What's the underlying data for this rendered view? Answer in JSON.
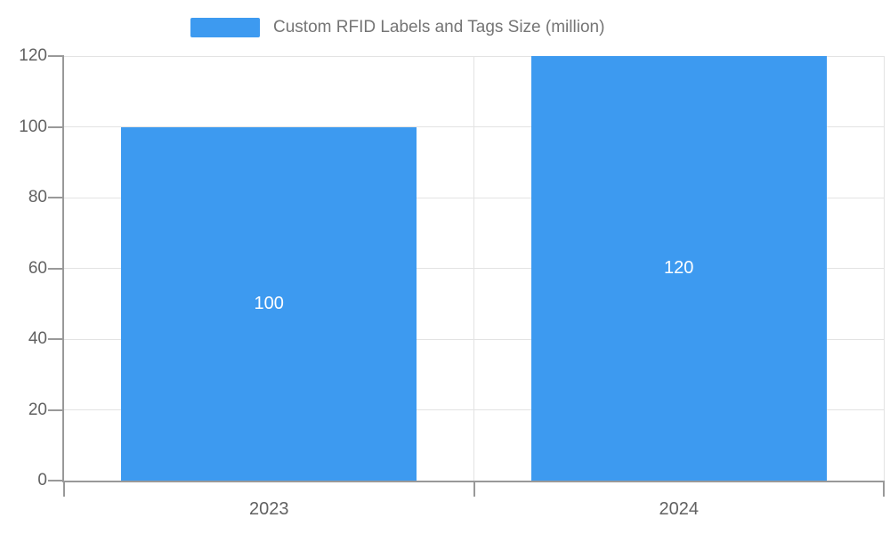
{
  "chart_data": {
    "type": "bar",
    "legend_label": "Custom RFID Labels and Tags Size (million)",
    "legend_position": "top",
    "categories": [
      "2023",
      "2024"
    ],
    "series": [
      {
        "name": "Custom RFID Labels and Tags Size (million)",
        "values": [
          100,
          120
        ]
      }
    ],
    "data_labels": [
      "100",
      "120"
    ],
    "ylim": [
      0,
      120
    ],
    "yticks": [
      0,
      20,
      40,
      60,
      80,
      100,
      120
    ],
    "grid": true,
    "colors": {
      "bar": "#3d9af0",
      "grid_line": "#e3e3e3",
      "axis_line": "#999999",
      "tick_label": "#616161",
      "legend_text": "#757575",
      "bar_label": "#ffffff"
    }
  }
}
